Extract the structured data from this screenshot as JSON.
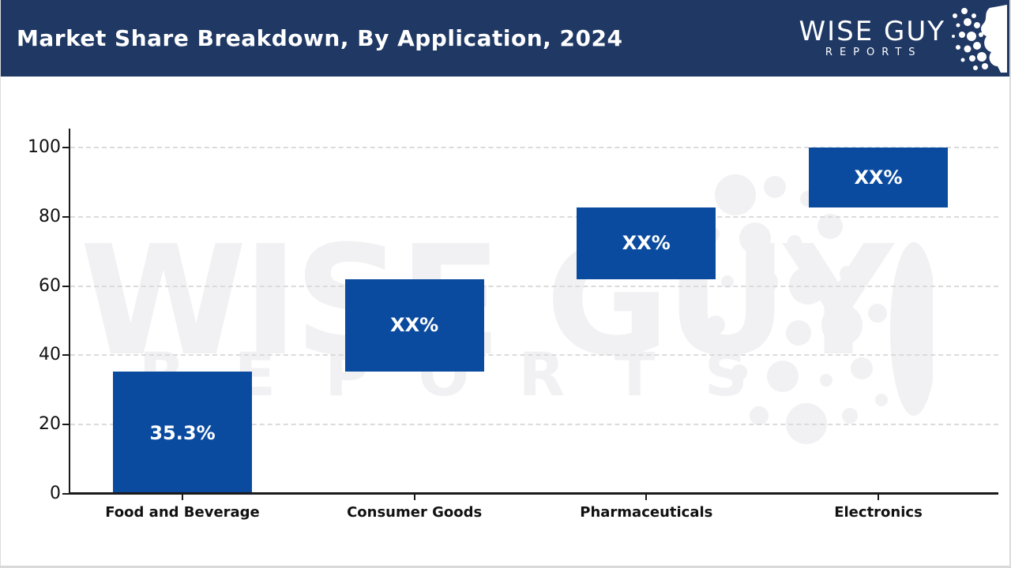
{
  "header": {
    "title": "Market Share Breakdown, By Application, 2024",
    "logo": {
      "line1": "WISE GUY",
      "line2": "REPORTS"
    }
  },
  "watermark": {
    "line1": "WISE GUY",
    "line2": "R E P O R T S"
  },
  "colors": {
    "header_bg": "#1f3864",
    "bar": "#0b4b9f",
    "grid": "#dbdbdb",
    "axis": "#1a1a1a",
    "tick_text": "#111111",
    "bar_label_text": "#ffffff",
    "watermark": "#f1f1f3",
    "edge_border": "#d9d9d9"
  },
  "chart_data": {
    "type": "bar",
    "subtype": "waterfall",
    "title": "Market Share Breakdown, By Application, 2024",
    "categories": [
      "Food and Beverage",
      "Consumer Goods",
      "Pharmaceuticals",
      "Electronics"
    ],
    "segments": [
      {
        "category": "Food and Beverage",
        "start": 0,
        "end": 35.3,
        "label": "35.3%"
      },
      {
        "category": "Consumer Goods",
        "start": 35.3,
        "end": 62,
        "label": "XX%"
      },
      {
        "category": "Pharmaceuticals",
        "start": 62,
        "end": 82.7,
        "label": "XX%"
      },
      {
        "category": "Electronics",
        "start": 82.7,
        "end": 100,
        "label": "XX%"
      }
    ],
    "xlabel": "",
    "ylabel": "",
    "ylim": [
      0,
      100
    ],
    "yticks": [
      0,
      20,
      40,
      60,
      80,
      100
    ],
    "grid": "horizontal-dashed",
    "legend": "none"
  }
}
